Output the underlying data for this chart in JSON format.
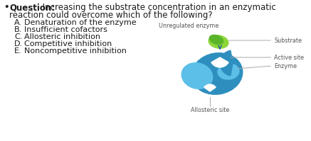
{
  "background_color": "#ffffff",
  "bullet": "•",
  "question_bold": "Question:",
  "question_rest": " Increasing the substrate concentration in an enzymatic",
  "question_line2": "reaction could overcome which of the following?",
  "options": [
    {
      "letter": "A.",
      "text": "Denaturation of the enzyme"
    },
    {
      "letter": "B.",
      "text": "Insufficient cofactors"
    },
    {
      "letter": "C.",
      "text": "Allosteric inhibition"
    },
    {
      "letter": "D.",
      "text": "Competitive inhibition"
    },
    {
      "letter": "E.",
      "text": "Noncompetitive inhibition"
    }
  ],
  "diagram_labels": {
    "title": "Unregulated enzyme",
    "substrate": "Substrate",
    "active_site": "Active site",
    "enzyme": "Enzyme",
    "allosteric_site": "Allosteric site"
  },
  "enzyme_color_dark": "#2e8fbf",
  "enzyme_color_light": "#5bbfe8",
  "substrate_color_dark": "#5ab52a",
  "substrate_color_light": "#8dd63a",
  "text_color": "#1a1a1a",
  "label_color": "#555555",
  "arrow_color": "#2255aa",
  "line_color": "#aaaaaa",
  "font_size_question": 8.5,
  "font_size_options": 8,
  "font_size_labels": 5.8,
  "font_size_title_label": 5.8
}
